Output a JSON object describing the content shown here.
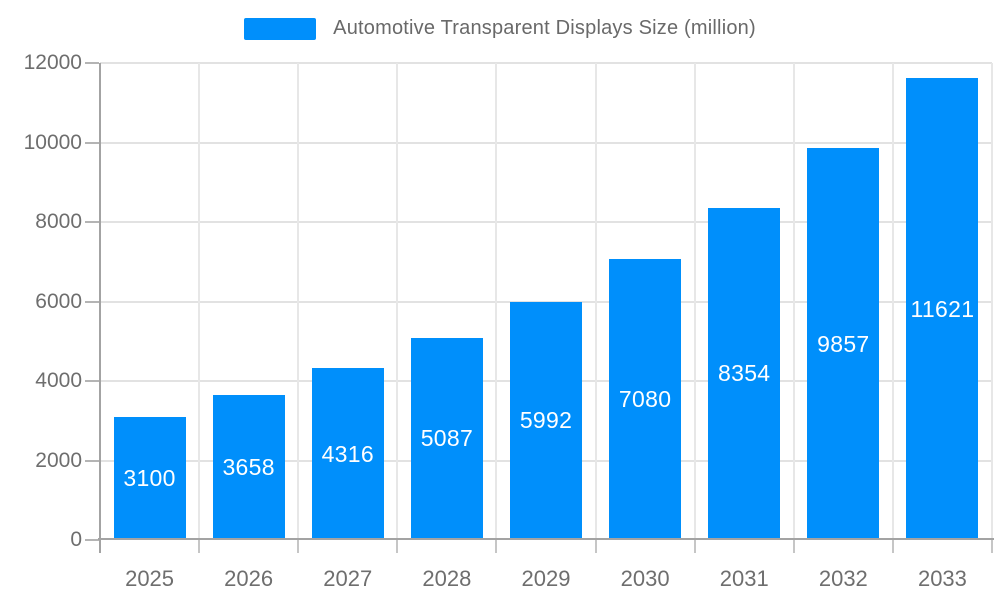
{
  "legend": {
    "label": "Automotive Transparent Displays Size (million)",
    "swatch_color": "#008FFB"
  },
  "chart_data": {
    "type": "bar",
    "title": "Automotive Transparent Displays Size (million)",
    "categories": [
      "2025",
      "2026",
      "2027",
      "2028",
      "2029",
      "2030",
      "2031",
      "2032",
      "2033"
    ],
    "values": [
      3100,
      3658,
      4316,
      5087,
      5992,
      7080,
      8354,
      9857,
      11621
    ],
    "xlabel": "",
    "ylabel": "",
    "ylim": [
      0,
      12000
    ],
    "ytick_step": 2000,
    "ytick_labels": [
      "0",
      "2000",
      "4000",
      "6000",
      "8000",
      "10000",
      "12000"
    ],
    "grid": "horizontal and vertical category boundaries",
    "legend_position": "top",
    "bar_color": "#008FFB",
    "value_label_color": "#ffffff",
    "axis_label_color": "#6e6e6e",
    "value_labels_inside_bars": true
  }
}
